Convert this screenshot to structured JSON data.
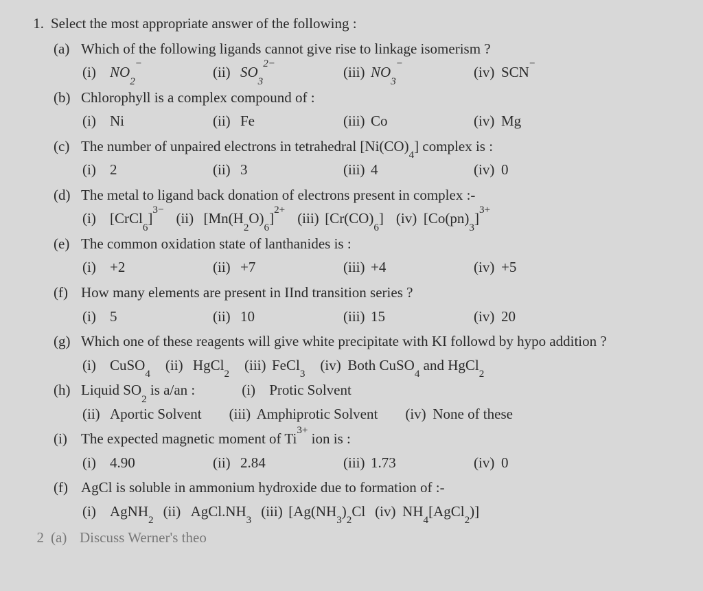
{
  "page": {
    "background_color": "#d8d8d8",
    "text_color": "#2a2a2a",
    "font_family": "Times New Roman",
    "base_font_size_pt": 16
  },
  "question": {
    "number": "1.",
    "stem": "Select the most appropriate answer of the following :"
  },
  "sub": {
    "a": {
      "label": "(a)",
      "text": "Which of the following ligands cannot give rise to linkage isomerism ?",
      "opts": {
        "i": {
          "label": "(i)",
          "html": "NO<sub>2</sub><sup>−</sup>"
        },
        "ii": {
          "label": "(ii)",
          "html": "SO<sub>3</sub><sup>2−</sup>"
        },
        "iii": {
          "label": "(iii)",
          "html": "NO<sub>3</sub><sup>−</sup>"
        },
        "iv": {
          "label": "(iv)",
          "html": "SCN<sup>−</sup>"
        }
      }
    },
    "b": {
      "label": "(b)",
      "text": "Chlorophyll is a complex compound of :",
      "opts": {
        "i": {
          "label": "(i)",
          "html": "Ni"
        },
        "ii": {
          "label": "(ii)",
          "html": "Fe"
        },
        "iii": {
          "label": "(iii)",
          "html": "Co"
        },
        "iv": {
          "label": "(iv)",
          "html": "Mg"
        }
      }
    },
    "c": {
      "label": "(c)",
      "text_html": "The number of unpaired electrons in tetrahedral [Ni(CO)<sub>4</sub>] complex is :",
      "opts": {
        "i": {
          "label": "(i)",
          "html": "2"
        },
        "ii": {
          "label": "(ii)",
          "html": "3"
        },
        "iii": {
          "label": "(iii)",
          "html": "4"
        },
        "iv": {
          "label": "(iv)",
          "html": "0"
        }
      }
    },
    "d": {
      "label": "(d)",
      "text": "The metal to ligand back donation of electrons present in complex :-",
      "opts": {
        "i": {
          "label": "(i)",
          "html": "[CrCl<sub>6</sub>]<sup>3−</sup>"
        },
        "ii": {
          "label": "(ii)",
          "html": "[Mn(H<sub>2</sub>O)<sub>6</sub>]<sup>2+</sup>"
        },
        "iii": {
          "label": "(iii)",
          "html": "[Cr(CO)<sub>6</sub>]"
        },
        "iv": {
          "label": "(iv)",
          "html": "[Co(pn)<sub>3</sub>]<sup>3+</sup>"
        }
      }
    },
    "e": {
      "label": "(e)",
      "text": "The common oxidation state of lanthanides is :",
      "opts": {
        "i": {
          "label": "(i)",
          "html": "+2"
        },
        "ii": {
          "label": "(ii)",
          "html": "+7"
        },
        "iii": {
          "label": "(iii)",
          "html": "+4"
        },
        "iv": {
          "label": "(iv)",
          "html": "+5"
        }
      }
    },
    "f1": {
      "label": "(f)",
      "text": "How many elements are present in IInd transition series ?",
      "opts": {
        "i": {
          "label": "(i)",
          "html": "5"
        },
        "ii": {
          "label": "(ii)",
          "html": "10"
        },
        "iii": {
          "label": "(iii)",
          "html": "15"
        },
        "iv": {
          "label": "(iv)",
          "html": "20"
        }
      }
    },
    "g": {
      "label": "(g)",
      "text": "Which one of these reagents will give white precipitate with KI followd by hypo addition ?",
      "opts": {
        "i": {
          "label": "(i)",
          "html": "CuSO<sub>4</sub>"
        },
        "ii": {
          "label": "(ii)",
          "html": "HgCl<sub>2</sub>"
        },
        "iii": {
          "label": "(iii)",
          "html": "FeCl<sub>3</sub>"
        },
        "iv": {
          "label": "(iv)",
          "html": "Both CuSO<sub>4</sub> and HgCl<sub>2</sub>"
        }
      }
    },
    "h": {
      "label": "(h)",
      "text_html": "Liquid SO<sub>2</sub> is a/an :",
      "opts": {
        "i": {
          "label": "(i)",
          "html": "Protic Solvent"
        },
        "ii": {
          "label": "(ii)",
          "html": "Aportic Solvent"
        },
        "iii": {
          "label": "(iii)",
          "html": "Amphiprotic Solvent"
        },
        "iv": {
          "label": "(iv)",
          "html": "None of these"
        }
      }
    },
    "i": {
      "label": "(i)",
      "text_html": "The expected magnetic moment of Ti<sup>3+</sup> ion is :",
      "opts": {
        "i": {
          "label": "(i)",
          "html": "4.90"
        },
        "ii": {
          "label": "(ii)",
          "html": "2.84"
        },
        "iii": {
          "label": "(iii)",
          "html": "1.73"
        },
        "iv": {
          "label": "(iv)",
          "html": "0"
        }
      }
    },
    "f2": {
      "label": "(f)",
      "text": "AgCl is soluble in ammonium hydroxide due to formation of :-",
      "opts": {
        "i": {
          "label": "(i)",
          "html": "AgNH<sub>2</sub>"
        },
        "ii": {
          "label": "(ii)",
          "html": "AgCl.NH<sub>3</sub>"
        },
        "iii": {
          "label": "(iii)",
          "html": "[Ag(NH<sub>3</sub>)<sub>2</sub>Cl"
        },
        "iv": {
          "label": "(iv)",
          "html": "NH<sub>4</sub>[AgCl<sub>2</sub>)]"
        }
      }
    }
  },
  "cutoff": {
    "num": "2",
    "label": "(a)",
    "text": "Discuss Werner's theo"
  }
}
